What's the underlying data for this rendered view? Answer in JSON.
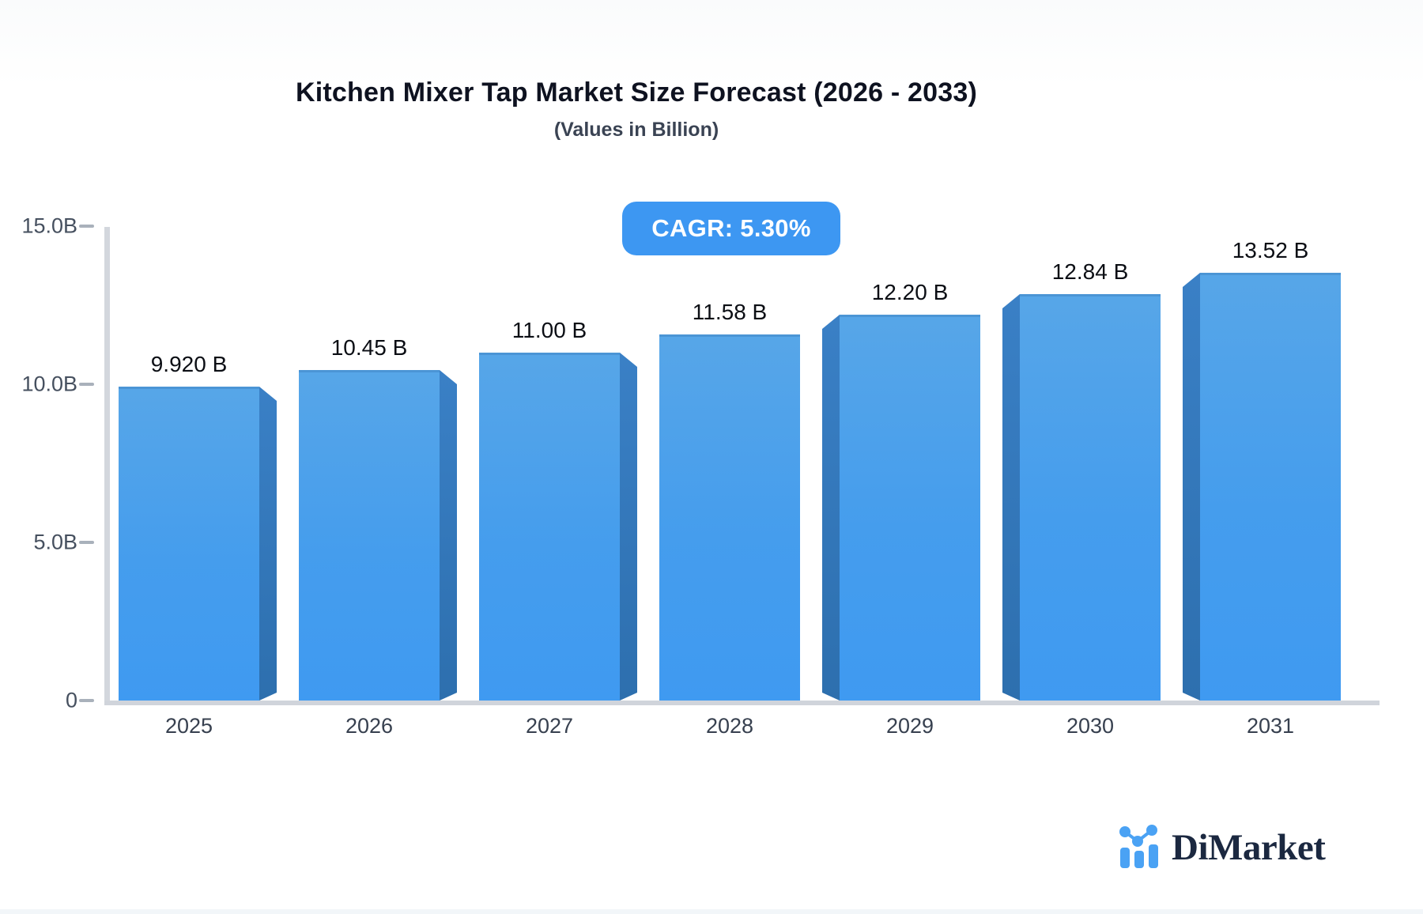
{
  "header": {
    "title": "Kitchen Mixer Tap Market Size Forecast (2026 - 2033)",
    "subtitle": "(Values in Billion)",
    "cagr_badge": "CAGR: 5.30%"
  },
  "chart_data": {
    "type": "bar",
    "title": "Kitchen Mixer Tap Market Size Forecast (2026 - 2033)",
    "subtitle": "(Values in Billion)",
    "categories": [
      "2025",
      "2026",
      "2027",
      "2028",
      "2029",
      "2030",
      "2031"
    ],
    "values": [
      9.92,
      10.45,
      11.0,
      11.58,
      12.2,
      12.84,
      13.52
    ],
    "value_labels": [
      "9.920 B",
      "10.45 B",
      "11.00 B",
      "11.58 B",
      "12.20 B",
      "12.84 B",
      "13.52 B"
    ],
    "xlabel": "",
    "ylabel": "",
    "ylim": [
      0,
      15
    ],
    "yticks": [
      {
        "label": "15.0B",
        "value": 15
      },
      {
        "label": "10.0B",
        "value": 10
      },
      {
        "label": "5.0B",
        "value": 5
      },
      {
        "label": "0",
        "value": 0
      }
    ],
    "grid": false,
    "legend": "none",
    "bar_color": "#459ded",
    "bar_side_color": "#2f78bd",
    "cagr": "5.30%"
  },
  "colors": {
    "badge_bg": "#3d97f2",
    "badge_text": "#ffffff",
    "axis_line": "#d3d7dd",
    "tick_label": "#46505f",
    "title_text": "#0e1220",
    "logo_navy": "#1b2840",
    "logo_blue": "#4aa2f4"
  },
  "footer": {
    "brand": "DiMarket",
    "logo_icon": "bar-line-chart-icon"
  }
}
